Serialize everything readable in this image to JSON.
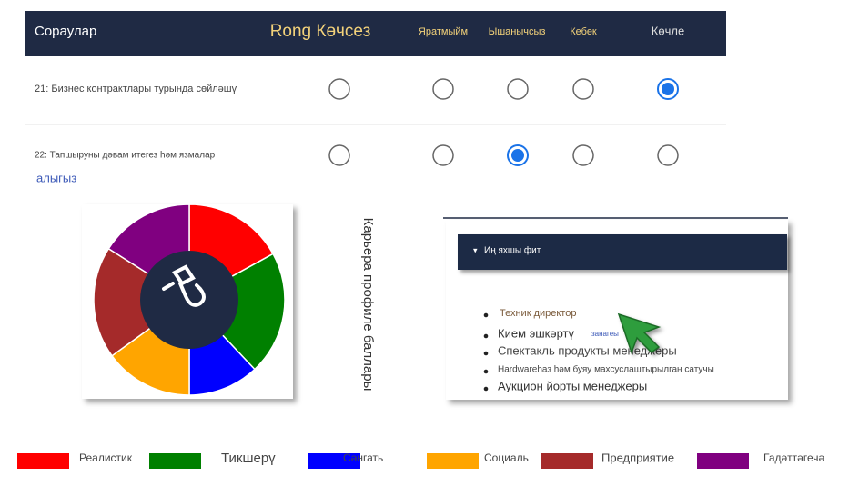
{
  "header": {
    "columns": [
      "Сораулар",
      "Rong Көчсез",
      "Яратмыйм",
      "Ышанычсыз",
      "Кебек",
      "Көчле"
    ]
  },
  "questions": [
    {
      "text": "21: Бизнес контрактлары турында сөйләшү",
      "selected": 4
    },
    {
      "text": "22: Тапшыруны дәвам итегез һәм язмалар",
      "text_continued": "алыгыз",
      "selected": 2
    }
  ],
  "chart_data": {
    "type": "pie",
    "axis_label": "Карьера профиле баллары",
    "categories": [
      "Реалистик",
      "Тикшерү",
      "Сәнгать",
      "Социаль",
      "Предприятие",
      "Гадәттәгечә"
    ],
    "values": [
      17,
      21,
      12,
      15,
      19,
      16
    ],
    "colors": [
      "#ff0000",
      "#008000",
      "#0000ff",
      "#ffa500",
      "#a52a2a",
      "#800080"
    ]
  },
  "best_fit": {
    "title": "Иң яхшы фит",
    "items": [
      "Техник директор",
      "Кием эшкәртү",
      "Спектакль продукты менеджеры",
      "Hardwareһаз һәм буяу махсуслаштырылган сатучы",
      "Аукцион йорты менеджеры"
    ],
    "item_note": "занагеы"
  }
}
